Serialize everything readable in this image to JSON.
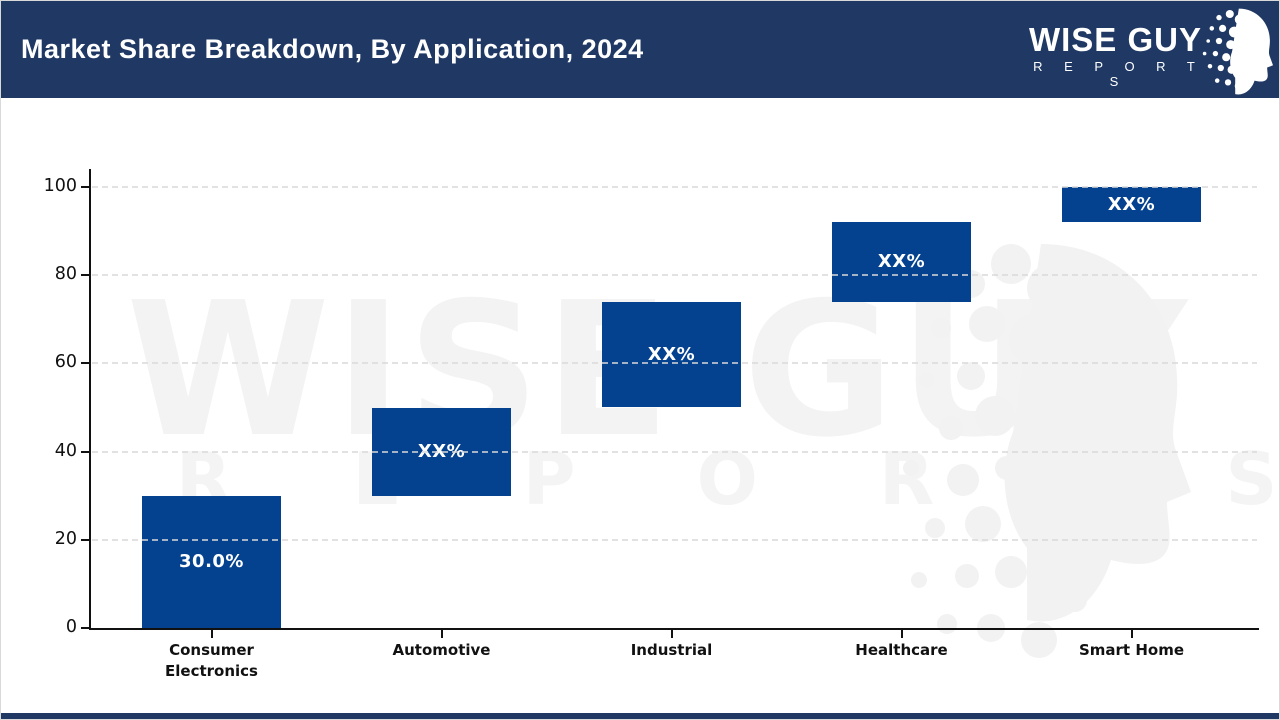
{
  "header": {
    "title": "Market Share Breakdown, By Application, 2024",
    "bg_color": "#1f3864",
    "logo": {
      "name_top": "WISE GUY",
      "name_bottom": "R E P O R T S"
    }
  },
  "watermark": {
    "line1": "WISE GUY",
    "line2": "REPORTS"
  },
  "chart_data": {
    "type": "bar",
    "variant": "waterfall",
    "title": "Market Share Breakdown, By Application, 2024",
    "categories": [
      "Consumer Electronics",
      "Automotive",
      "Industrial",
      "Healthcare",
      "Smart Home"
    ],
    "series": [
      {
        "name": "Consumer Electronics",
        "start": 0,
        "end": 30,
        "value": 30,
        "label": "30.0%"
      },
      {
        "name": "Automotive",
        "start": 30,
        "end": 50,
        "value": 20,
        "label": "XX%"
      },
      {
        "name": "Industrial",
        "start": 50,
        "end": 74,
        "value": 24,
        "label": "XX%"
      },
      {
        "name": "Healthcare",
        "start": 74,
        "end": 92,
        "value": 18,
        "label": "XX%"
      },
      {
        "name": "Smart Home",
        "start": 92,
        "end": 100,
        "value": 8,
        "label": "XX%"
      }
    ],
    "yticks": [
      0,
      20,
      40,
      60,
      80,
      100
    ],
    "ylim": [
      0,
      104
    ],
    "xlabel": "",
    "ylabel": "",
    "grid": "dashed-horizontal",
    "legend": "none",
    "bar_color": "#04418f",
    "bar_label_color": "#ffffff"
  }
}
